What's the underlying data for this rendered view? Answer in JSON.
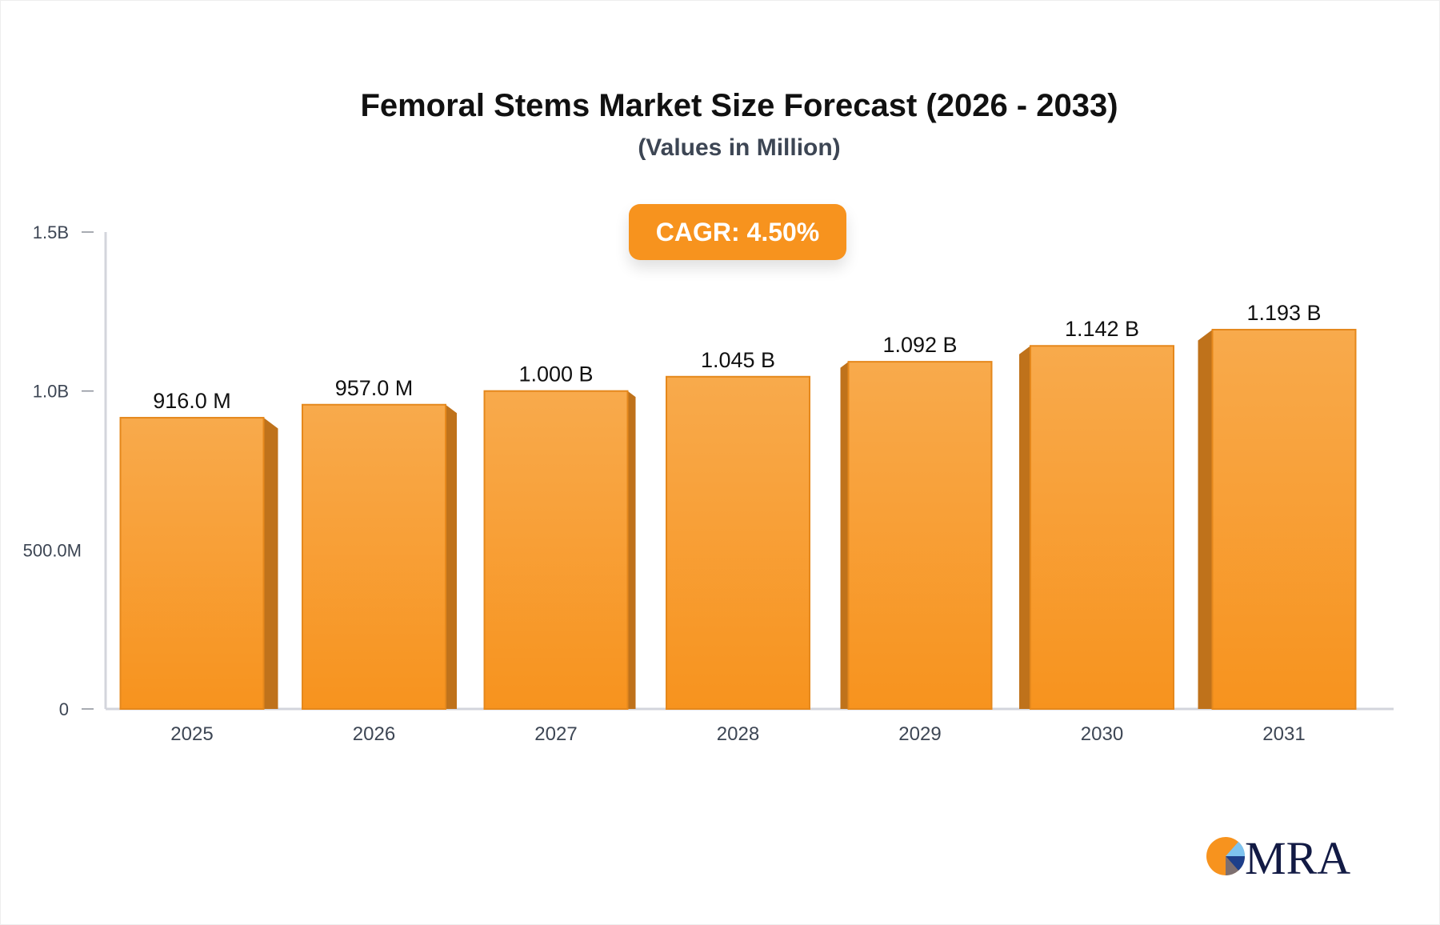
{
  "chart_data": {
    "type": "bar",
    "title": "Femoral Stems Market Size Forecast (2026 - 2033)",
    "subtitle": "(Values in Million)",
    "annotation": "CAGR: 4.50%",
    "categories": [
      "2025",
      "2026",
      "2027",
      "2028",
      "2029",
      "2030",
      "2031"
    ],
    "values": [
      916.0,
      957.0,
      1000,
      1045,
      1092,
      1142,
      1193
    ],
    "value_labels": [
      "916.0 M",
      "957.0 M",
      "1.000 B",
      "1.045 B",
      "1.092 B",
      "1.142 B",
      "1.193 B"
    ],
    "unit": "Million",
    "ylim": [
      0,
      1500
    ],
    "yticks": [
      0,
      500,
      1000,
      1500
    ],
    "ytick_labels": [
      "0",
      "500.0M",
      "1.0B",
      "1.5B"
    ],
    "xlabel": "",
    "ylabel": "",
    "grid": false,
    "colors": {
      "bar": "#f7931e",
      "bar_top": "#f8aa4c",
      "bar_side": "#bf721b",
      "bar_edge": "#e5881c",
      "axis": "#d3d5dc"
    }
  },
  "logo": {
    "text": "MRA"
  }
}
